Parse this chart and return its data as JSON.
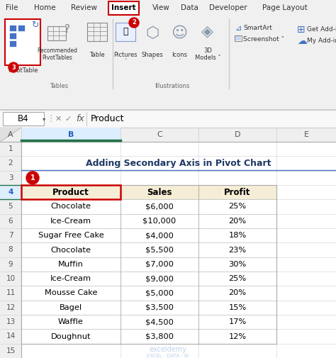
{
  "title": "Adding Secondary Axis in Pivot Chart",
  "headers": [
    "Product",
    "Sales",
    "Profit"
  ],
  "rows": [
    [
      "Chocolate",
      "$6,000",
      "25%"
    ],
    [
      "Ice-Cream",
      "$10,000",
      "20%"
    ],
    [
      "Sugar Free Cake",
      "$4,000",
      "18%"
    ],
    [
      "Chocolate",
      "$5,500",
      "23%"
    ],
    [
      "Muffin",
      "$7,000",
      "30%"
    ],
    [
      "Ice-Cream",
      "$9,000",
      "25%"
    ],
    [
      "Mousse Cake",
      "$5,000",
      "20%"
    ],
    [
      "Bagel",
      "$3,500",
      "15%"
    ],
    [
      "Waffle",
      "$4,500",
      "17%"
    ],
    [
      "Doughnut",
      "$3,800",
      "12%"
    ]
  ],
  "header_bg": "#F5EDD6",
  "header_text_color": "#000000",
  "row_bg": "#FFFFFF",
  "row_text_color": "#000000",
  "grid_color": "#C8C8C8",
  "title_color": "#1F3864",
  "ribbon_bg": "#F0F0F0",
  "figure_bg": "#FFFFFF",
  "cell_ref": "B4",
  "formula_text": "Product",
  "tab_active": "Insert",
  "tabs": [
    "File",
    "Home",
    "Review",
    "Insert",
    "View",
    "Data",
    "Developer",
    "Page Layout"
  ],
  "header_border_color": "#CC0000",
  "tab_border_color": "#CC0000",
  "selected_col_bg": "#DDEEFF",
  "selected_col_border": "#217346",
  "watermark": "exceldemy",
  "watermark2": "EXCEL · DATA · BI"
}
